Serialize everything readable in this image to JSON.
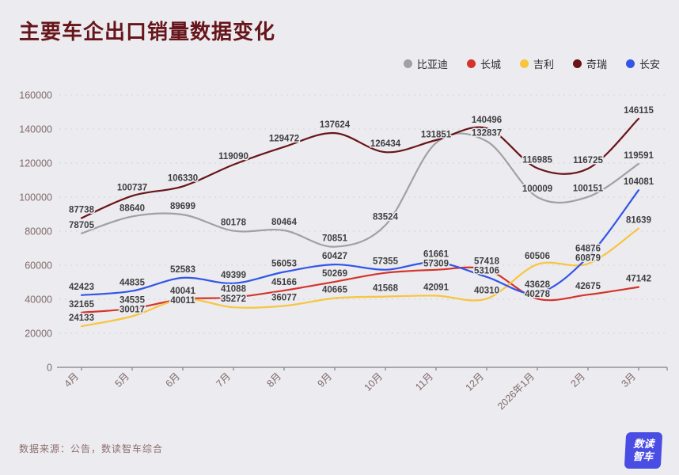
{
  "title": "主要车企出口销量数据变化",
  "source_note": "数据来源：公告，数读智车综合",
  "logo": {
    "line1": "数读",
    "line2": "智车",
    "bg_color": "#4A4DE3"
  },
  "colors": {
    "background": "#ECEBEF",
    "title_text": "#66151A",
    "axis_text": "#7F6A6A",
    "axis_line": "#919195",
    "gridline": "#D6D3DA",
    "data_label": "#3F3F41",
    "source_text": "#8A6D6D"
  },
  "chart_data": {
    "type": "line",
    "smooth": true,
    "grid": "dashed-horizontal",
    "legend_position": "top-right",
    "ylim": [
      0,
      160000
    ],
    "ytick_step": 20000,
    "ytick_labels": [
      "0",
      "20000",
      "40000",
      "60000",
      "80000",
      "100000",
      "120000",
      "140000",
      "160000"
    ],
    "categories": [
      "4月",
      "5月",
      "6月",
      "7月",
      "8月",
      "9月",
      "10月",
      "11月",
      "12月",
      "2026年1月",
      "2月",
      "3月"
    ],
    "series": [
      {
        "name": "比亚迪",
        "slug": "byd",
        "color": "#A1A1A4",
        "values": [
          78705,
          88640,
          89699,
          80178,
          80464,
          70851,
          83524,
          131851,
          132837,
          100009,
          100151,
          119591
        ],
        "hidden_labels": []
      },
      {
        "name": "长城",
        "slug": "greatwall",
        "color": "#D4342B",
        "values": [
          32165,
          34535,
          40041,
          41088,
          45166,
          50269,
          55500,
          57309,
          57418,
          40278,
          42675,
          47142
        ],
        "hidden_labels": [
          6
        ]
      },
      {
        "name": "吉利",
        "slug": "geely",
        "color": "#F8C53F",
        "values": [
          24133,
          30017,
          40011,
          35272,
          36077,
          40665,
          41568,
          42091,
          40310,
          60506,
          60879,
          81639
        ],
        "hidden_labels": []
      },
      {
        "name": "奇瑞",
        "slug": "chery",
        "color": "#681519",
        "values": [
          87738,
          100737,
          106330,
          119090,
          129472,
          137624,
          126434,
          133500,
          140496,
          116985,
          116725,
          146115
        ],
        "hidden_labels": [
          7
        ]
      },
      {
        "name": "长安",
        "slug": "changan",
        "color": "#3156E8",
        "values": [
          42423,
          44835,
          52583,
          49399,
          56053,
          60427,
          57355,
          61661,
          53106,
          43628,
          64876,
          104081
        ],
        "hidden_labels": []
      }
    ]
  }
}
